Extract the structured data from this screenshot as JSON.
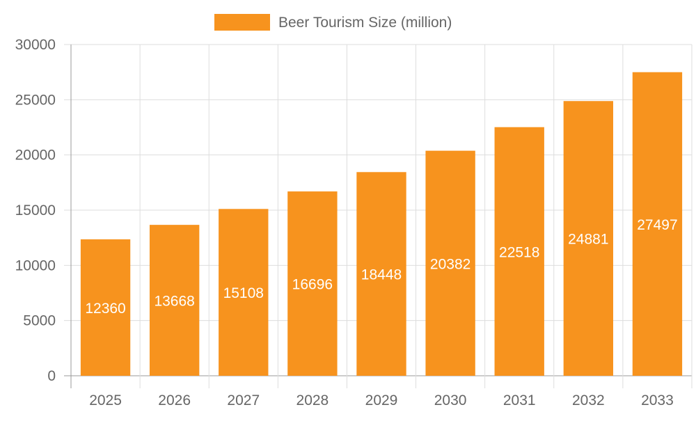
{
  "chart_data": {
    "type": "bar",
    "title": "",
    "xlabel": "",
    "ylabel": "",
    "categories": [
      "2025",
      "2026",
      "2027",
      "2028",
      "2029",
      "2030",
      "2031",
      "2032",
      "2033"
    ],
    "series": [
      {
        "name": "Beer Tourism Size (million)",
        "values": [
          12360,
          13668,
          15108,
          16696,
          18448,
          20382,
          22518,
          24881,
          27497
        ]
      }
    ],
    "ylim": [
      0,
      30000
    ],
    "yticks": [
      0,
      5000,
      10000,
      15000,
      20000,
      25000,
      30000
    ],
    "grid": true,
    "legend_position": "top-center",
    "data_labels": true,
    "colors": {
      "bar": "#f7931e",
      "data_label": "#ffffff",
      "grid": "#dddddd",
      "axis": "#999999",
      "tick_text": "#666666"
    }
  }
}
